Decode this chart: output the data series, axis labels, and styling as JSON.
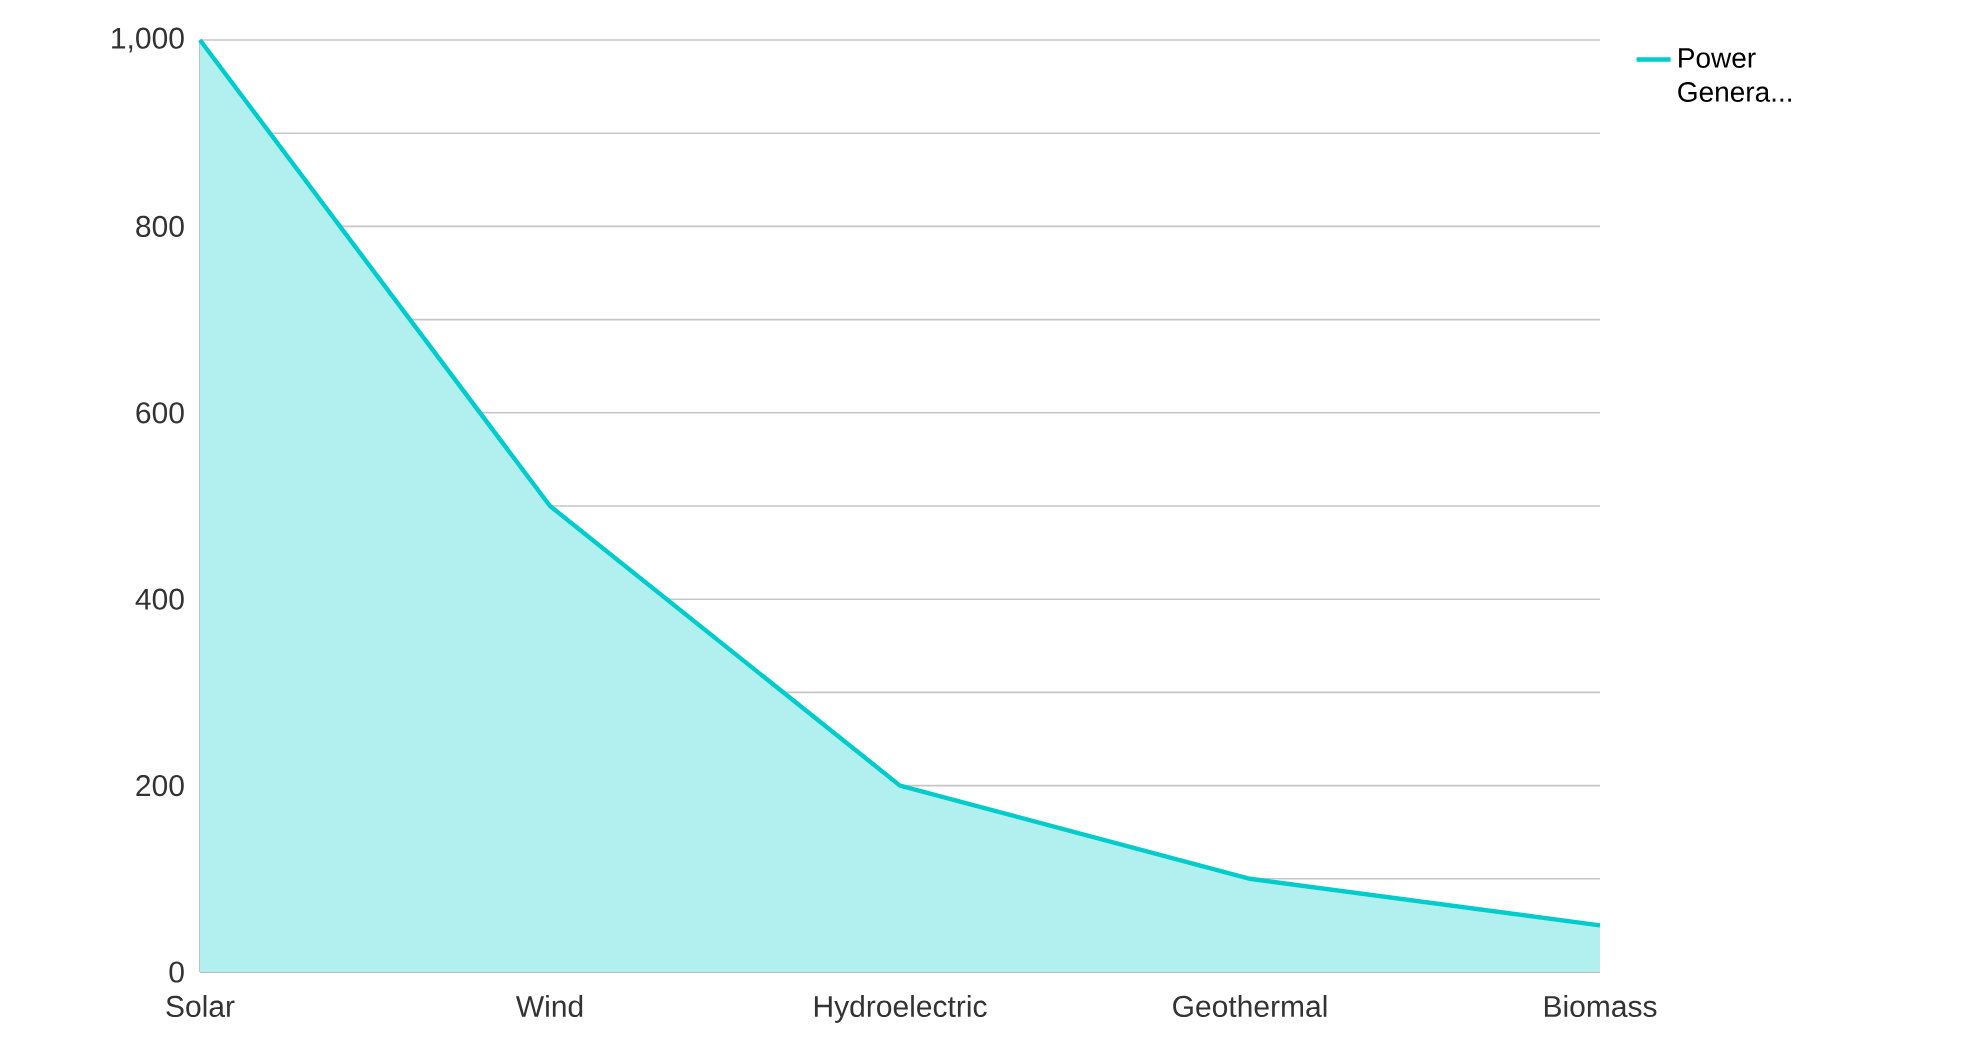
{
  "chart_data": {
    "type": "area",
    "categories": [
      "Solar",
      "Wind",
      "Hydroelectric",
      "Geothermal",
      "Biomass"
    ],
    "series": [
      {
        "name": "Power Genera...",
        "color": "#00cccc",
        "values": [
          1000,
          500,
          200,
          100,
          50
        ]
      }
    ],
    "ylim": [
      0,
      1000
    ],
    "yticks": [
      0,
      {
        "value": 100,
        "label": null
      },
      200,
      {
        "value": 300,
        "label": null
      },
      400,
      {
        "value": 500,
        "label": null
      },
      600,
      {
        "value": 700,
        "label": null
      },
      800,
      {
        "value": 900,
        "label": null
      },
      {
        "value": 1000,
        "label": "1,000"
      }
    ],
    "grid": "y",
    "legend": "top right"
  }
}
